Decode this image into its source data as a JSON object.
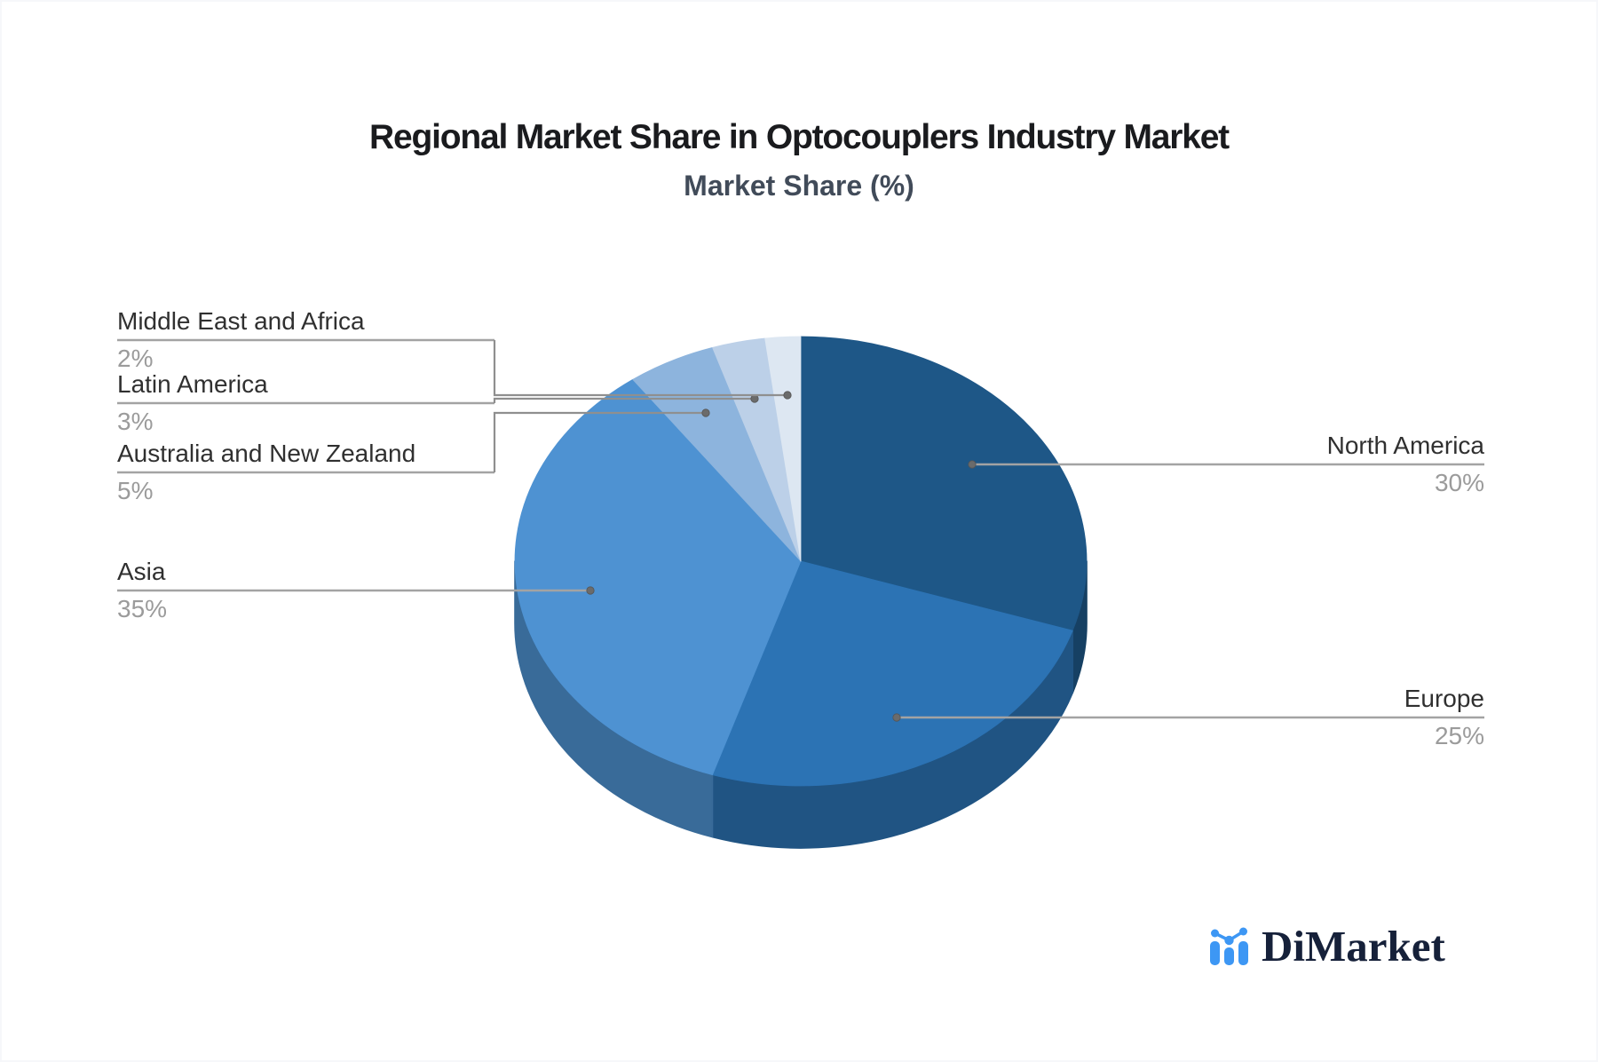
{
  "chart_data": {
    "type": "pie",
    "style": "3d-pie",
    "title": "Regional Market Share in Optocouplers Industry Market",
    "subtitle": "Market Share (%)",
    "unit": "%",
    "slices": [
      {
        "label": "North America",
        "value": 30,
        "display": "30%",
        "color": "#1e5787"
      },
      {
        "label": "Europe",
        "value": 25,
        "display": "25%",
        "color": "#2c73b4"
      },
      {
        "label": "Asia",
        "value": 35,
        "display": "35%",
        "color": "#4e92d2"
      },
      {
        "label": "Australia and New Zealand",
        "value": 5,
        "display": "5%",
        "color": "#8db4dd"
      },
      {
        "label": "Latin America",
        "value": 3,
        "display": "3%",
        "color": "#bcd0e8"
      },
      {
        "label": "Middle East and Africa",
        "value": 2,
        "display": "2%",
        "color": "#dde7f2"
      }
    ],
    "legend_position": "callouts",
    "colors": {
      "label_text": "#303030",
      "value_text": "#9b9b9b",
      "leader_line": "#8f8f8f",
      "rule_line": "#a3a3a3",
      "background": "#ffffff"
    }
  },
  "logo": {
    "text": "DiMarket",
    "icon": "bar-chart-logo-icon",
    "text_color": "#16213a",
    "icon_color": "#3d97f4"
  }
}
